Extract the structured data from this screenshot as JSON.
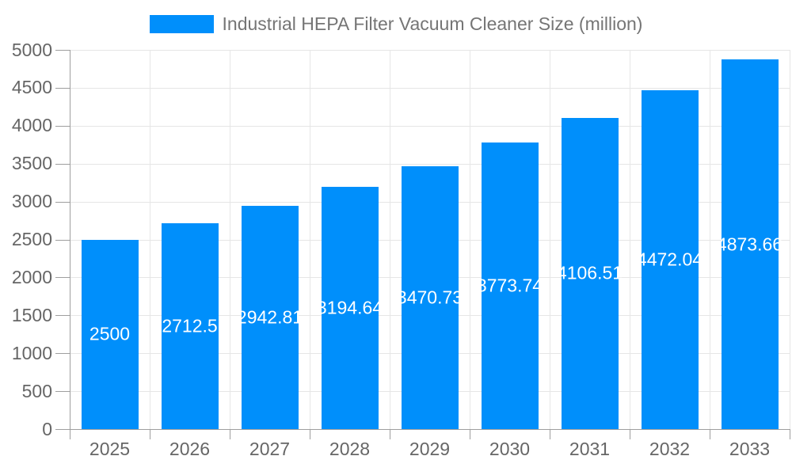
{
  "chart_data": {
    "type": "bar",
    "title": "Industrial HEPA Filter Vacuum Cleaner Size (million)",
    "categories": [
      "2025",
      "2026",
      "2027",
      "2028",
      "2029",
      "2030",
      "2031",
      "2032",
      "2033"
    ],
    "values": [
      2500,
      2712.5,
      2942.81,
      3194.64,
      3470.73,
      3773.74,
      4106.51,
      4472.04,
      4873.66
    ],
    "bar_labels": [
      "2500",
      "2712.5",
      "2942.81",
      "3194.64",
      "3470.73",
      "3773.74",
      "4106.51",
      "4472.04",
      "4873.66"
    ],
    "xlabel": "",
    "ylabel": "",
    "ylim": [
      0,
      5000
    ],
    "ytick_step": 500,
    "ytick_labels": [
      "0",
      "500",
      "1000",
      "1500",
      "2000",
      "2500",
      "3000",
      "3500",
      "4000",
      "4500",
      "5000"
    ],
    "grid": "horizontal and vertical light gray gridlines",
    "legend_position": "top-center",
    "bar_color": "#008FFB",
    "data_label_color": "#ffffff",
    "axis_label_color": "#666666",
    "legend_text_color": "#757575",
    "gridline_color": "#e6e6e6",
    "axis_line_color": "#9e9e9e"
  }
}
